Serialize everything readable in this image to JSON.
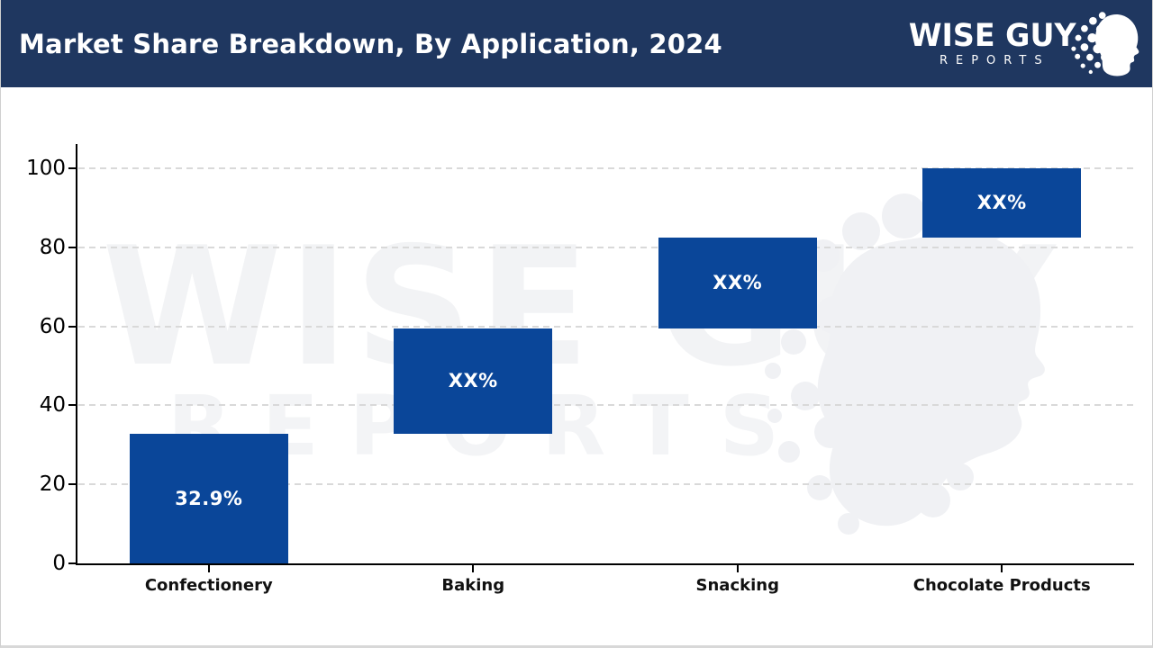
{
  "header": {
    "title": "Market Share Breakdown, By Application, 2024",
    "bg_color": "#1f3760",
    "logo": {
      "brand_line1": "WISE GUY",
      "brand_line2": "REPORTS",
      "head_icon": "dotted-head-profile"
    }
  },
  "chart_data": {
    "type": "bar",
    "variant": "waterfall",
    "title": "Market Share Breakdown, By Application, 2024",
    "categories": [
      "Confectionery",
      "Baking",
      "Snacking",
      "Chocolate Products"
    ],
    "segments": [
      {
        "category": "Confectionery",
        "start": 0,
        "end": 32.9,
        "label": "32.9%"
      },
      {
        "category": "Baking",
        "start": 32.9,
        "end": 59.5,
        "label": "XX%"
      },
      {
        "category": "Snacking",
        "start": 59.5,
        "end": 82.5,
        "label": "XX%"
      },
      {
        "category": "Chocolate Products",
        "start": 82.5,
        "end": 100,
        "label": "XX%"
      }
    ],
    "yticks": [
      0,
      20,
      40,
      60,
      80,
      100
    ],
    "ylim": [
      0,
      106
    ],
    "xlabel": "",
    "ylabel": "",
    "grid": {
      "horizontal": true,
      "style": "dashed",
      "color": "#d9d9d9"
    },
    "bar_color": "#0a4699",
    "bar_label_color": "#ffffff",
    "axis_color": "#000000",
    "legend": null
  },
  "watermark": {
    "line1": "WISE GUY",
    "line2": "REPORTS",
    "head_icon": "dotted-head-profile"
  }
}
